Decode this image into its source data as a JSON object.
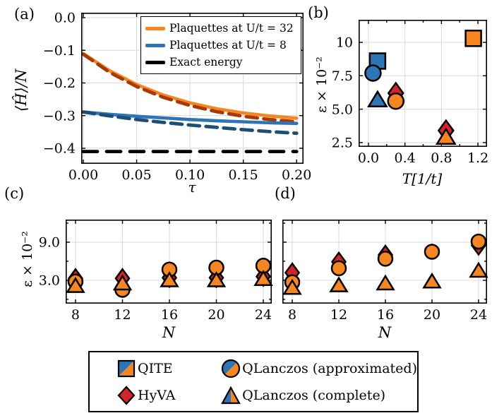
{
  "colors": {
    "orange": "#F6861F",
    "dark_orange": "#A63B08",
    "blue": "#2E75B6",
    "dark_blue": "#1D4F76",
    "red": "#D6232A",
    "black": "#000000",
    "grid": "#DCDCDC"
  },
  "legend": {
    "entries": [
      {
        "marker": "square",
        "fill": "split",
        "label": "QITE"
      },
      {
        "marker": "diamond",
        "fill": "red",
        "label": "HyVA"
      },
      {
        "marker": "circle",
        "fill": "split",
        "label": "QLanczos (approximated)"
      },
      {
        "marker": "triangle",
        "fill": "split",
        "label": "QLanczos (complete)"
      }
    ]
  },
  "chart_data": [
    {
      "id": "a",
      "panel_label": "(a)",
      "type": "line",
      "xlabel": "τ",
      "ylabel": "⟨Ĥ⟩/N",
      "xlim": [
        -0.002,
        0.2065
      ],
      "ylim": [
        -0.4476,
        0.0151
      ],
      "xticks": [
        0,
        0.05,
        0.1,
        0.15,
        0.2
      ],
      "xtick_labels": [
        "0.00",
        "0.05",
        "0.10",
        "0.15",
        "0.20"
      ],
      "yticks": [
        0,
        -0.1,
        -0.2,
        -0.3,
        -0.4
      ],
      "ytick_labels": [
        "0.0",
        "−0.1",
        "−0.2",
        "−0.3",
        "−0.4"
      ],
      "grid": true,
      "x": [
        0,
        0.025,
        0.05,
        0.075,
        0.1,
        0.125,
        0.15,
        0.175,
        0.2
      ],
      "series": [
        {
          "name": "Plaquettes at U/t = 32",
          "color": "orange",
          "style": "solid",
          "values": [
            -0.11,
            -0.163,
            -0.205,
            -0.237,
            -0.261,
            -0.279,
            -0.292,
            -0.301,
            -0.308
          ]
        },
        {
          "name": "",
          "color": "dark_orange",
          "style": "dashed",
          "values": [
            -0.112,
            -0.168,
            -0.211,
            -0.244,
            -0.269,
            -0.288,
            -0.302,
            -0.312,
            -0.319
          ]
        },
        {
          "name": "Plaquettes at U/t = 8",
          "color": "blue",
          "style": "solid",
          "values": [
            -0.289,
            -0.296,
            -0.302,
            -0.307,
            -0.312,
            -0.316,
            -0.319,
            -0.322,
            -0.324
          ]
        },
        {
          "name": "",
          "color": "dark_blue",
          "style": "dashed",
          "values": [
            -0.289,
            -0.301,
            -0.312,
            -0.321,
            -0.329,
            -0.336,
            -0.343,
            -0.349,
            -0.354
          ]
        },
        {
          "name": "Exact energy",
          "color": "black",
          "style": "dashed",
          "values": [
            -0.41,
            -0.41,
            -0.41,
            -0.41,
            -0.41,
            -0.41,
            -0.41,
            -0.41,
            -0.41
          ]
        }
      ],
      "legend": [
        {
          "label": "Plaquettes at U/t = 32",
          "color": "orange"
        },
        {
          "label": "Plaquettes at U/t = 8",
          "color": "blue"
        },
        {
          "label": "Exact energy",
          "color": "black"
        }
      ]
    },
    {
      "id": "b",
      "panel_label": "(b)",
      "type": "scatter",
      "xlabel": "T[1/t]",
      "ylabel": "ε × 10⁻²",
      "xlim": [
        -0.108,
        1.3
      ],
      "ylim": [
        2.18,
        11.69
      ],
      "xticks": [
        0,
        0.4,
        0.8,
        1.2
      ],
      "xtick_labels": [
        "0.0",
        "0.4",
        "0.8",
        "1.2"
      ],
      "xticks_minor": [
        0.2,
        0.6,
        1.0
      ],
      "yticks": [
        2.5,
        5,
        7.5,
        10
      ],
      "ytick_labels": [
        "2.5",
        "5.0",
        "7.5",
        "10"
      ],
      "grid": true,
      "points": [
        {
          "marker": "square",
          "color": "blue",
          "x": 0.1,
          "y": 8.6
        },
        {
          "marker": "square",
          "color": "orange",
          "x": 1.15,
          "y": 10.3
        },
        {
          "marker": "diamond",
          "color": "red",
          "x": 0.3,
          "y": 6.2
        },
        {
          "marker": "diamond",
          "color": "red",
          "x": 0.85,
          "y": 3.4
        },
        {
          "marker": "circle",
          "color": "blue",
          "x": 0.05,
          "y": 7.7
        },
        {
          "marker": "circle",
          "color": "orange",
          "x": 0.3,
          "y": 5.6
        },
        {
          "marker": "triangle",
          "color": "blue",
          "x": 0.1,
          "y": 5.7
        },
        {
          "marker": "triangle",
          "color": "orange",
          "x": 0.85,
          "y": 2.9
        }
      ]
    },
    {
      "id": "c",
      "panel_label": "(c)",
      "type": "scatter",
      "xlabel": "N",
      "ylabel": "ε × 10⁻²",
      "xlim": [
        7.16,
        24.72
      ],
      "ylim": [
        -0.67,
        12.56
      ],
      "xticks": [
        8,
        12,
        16,
        20,
        24
      ],
      "xtick_labels": [
        "8",
        "12",
        "16",
        "20",
        "24"
      ],
      "yticks": [
        3,
        9
      ],
      "ytick_labels": [
        "3.0",
        "9.0"
      ],
      "yticks_minor": [
        0,
        6,
        12
      ],
      "grid": true,
      "points": [
        {
          "marker": "diamond",
          "color": "red",
          "x": 8,
          "y": 3.3
        },
        {
          "marker": "diamond",
          "color": "red",
          "x": 12,
          "y": 3.3
        },
        {
          "marker": "diamond",
          "color": "red",
          "x": 16,
          "y": 3.4
        },
        {
          "marker": "diamond",
          "color": "red",
          "x": 20,
          "y": 3.4
        },
        {
          "marker": "diamond",
          "color": "red",
          "x": 24,
          "y": 3.6
        },
        {
          "marker": "circle",
          "color": "orange",
          "x": 8,
          "y": 2.8
        },
        {
          "marker": "circle",
          "color": "orange",
          "x": 12,
          "y": 1.5
        },
        {
          "marker": "circle",
          "color": "orange",
          "x": 16,
          "y": 4.7
        },
        {
          "marker": "circle",
          "color": "orange",
          "x": 20,
          "y": 5.0
        },
        {
          "marker": "circle",
          "color": "orange",
          "x": 24,
          "y": 5.3
        },
        {
          "marker": "triangle",
          "color": "orange",
          "x": 8,
          "y": 2.1
        },
        {
          "marker": "triangle",
          "color": "orange",
          "x": 12,
          "y": 2.5
        },
        {
          "marker": "triangle",
          "color": "orange",
          "x": 16,
          "y": 3.0
        },
        {
          "marker": "triangle",
          "color": "orange",
          "x": 20,
          "y": 3.0
        },
        {
          "marker": "triangle",
          "color": "orange",
          "x": 24,
          "y": 3.2
        }
      ]
    },
    {
      "id": "d",
      "panel_label": "(d)",
      "type": "scatter",
      "xlabel": "N",
      "ylabel": "",
      "xlim": [
        7.15,
        24.73
      ],
      "ylim": [
        -0.67,
        12.56
      ],
      "xticks": [
        8,
        12,
        16,
        20,
        24
      ],
      "xtick_labels": [
        "8",
        "12",
        "16",
        "20",
        "24"
      ],
      "yticks": [
        3,
        9
      ],
      "yticks_minor": [
        0,
        6,
        12
      ],
      "grid": true,
      "points": [
        {
          "marker": "diamond",
          "color": "red",
          "x": 8,
          "y": 4.2
        },
        {
          "marker": "diamond",
          "color": "red",
          "x": 12,
          "y": 5.9
        },
        {
          "marker": "diamond",
          "color": "red",
          "x": 16,
          "y": 7.0
        },
        {
          "marker": "diamond",
          "color": "red",
          "x": 24,
          "y": 8.5
        },
        {
          "marker": "circle",
          "color": "orange",
          "x": 8,
          "y": 2.7
        },
        {
          "marker": "circle",
          "color": "orange",
          "x": 12,
          "y": 4.9
        },
        {
          "marker": "circle",
          "color": "orange",
          "x": 16,
          "y": 6.4
        },
        {
          "marker": "circle",
          "color": "orange",
          "x": 20,
          "y": 7.5
        },
        {
          "marker": "circle",
          "color": "orange",
          "x": 24,
          "y": 9.1
        },
        {
          "marker": "triangle",
          "color": "orange",
          "x": 8,
          "y": 1.8
        },
        {
          "marker": "triangle",
          "color": "orange",
          "x": 12,
          "y": 2.2
        },
        {
          "marker": "triangle",
          "color": "orange",
          "x": 16,
          "y": 2.5
        },
        {
          "marker": "triangle",
          "color": "orange",
          "x": 20,
          "y": 2.8
        },
        {
          "marker": "triangle",
          "color": "orange",
          "x": 24,
          "y": 4.5
        }
      ]
    }
  ]
}
